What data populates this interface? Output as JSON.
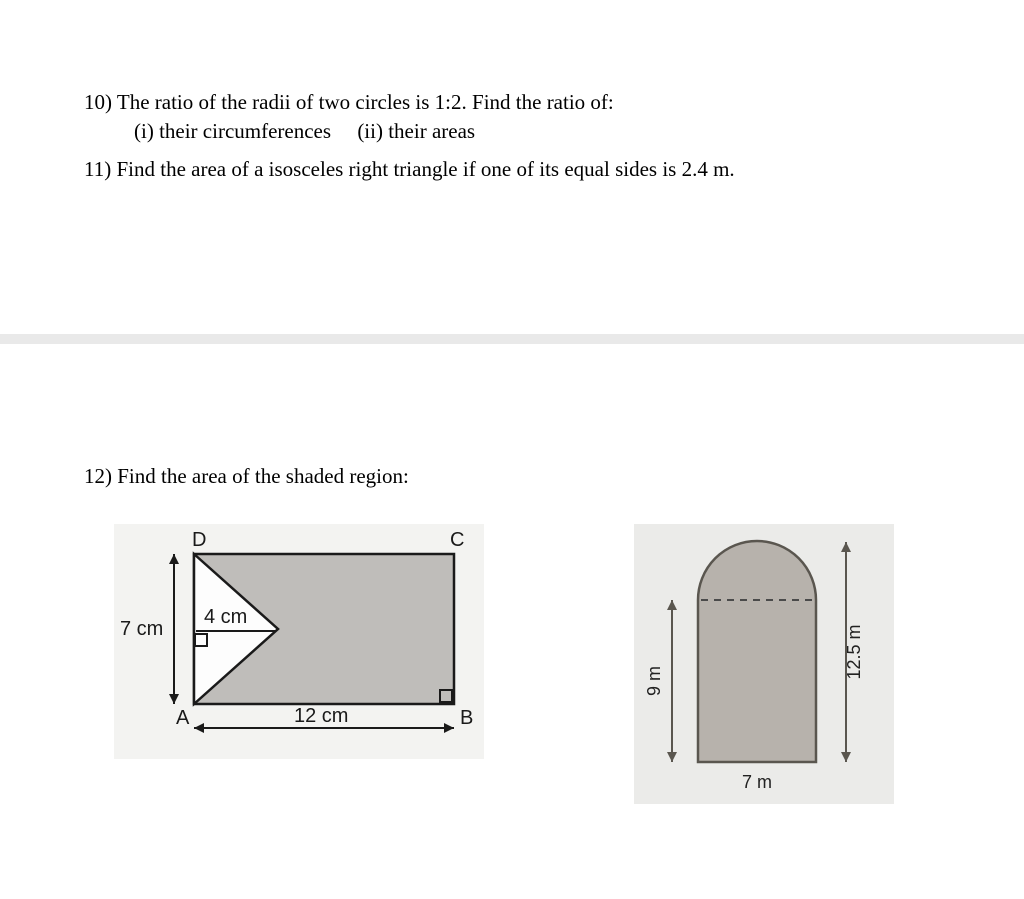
{
  "q10": {
    "number": "10)",
    "text": "The ratio of the radii of two circles is 1:2. Find the ratio of:",
    "sub_i": "(i) their circumferences",
    "sub_ii": "(ii) their areas"
  },
  "q11": {
    "number": "11)",
    "text": "Find the area of a isosceles right triangle if one of its equal sides is 2.4 m."
  },
  "q12": {
    "number": "12)",
    "text": "Find the area of the shaded region:"
  },
  "figure1": {
    "labels": {
      "D": "D",
      "C": "C",
      "A": "A",
      "B": "B"
    },
    "dims": {
      "left": "7 cm",
      "tri": "4 cm",
      "bottom": "12 cm"
    },
    "colors": {
      "fill": "#bfbdba",
      "stroke": "#1a1a1a",
      "tri_fill": "#fdfdfd",
      "bg": "#f3f3f1",
      "text": "#1a1a1a"
    }
  },
  "figure2": {
    "dims": {
      "left": "9 m",
      "right": "12.5 m",
      "bottom": "7 m"
    },
    "colors": {
      "fill": "#b7b2ac",
      "stroke": "#5a564f",
      "dash": "#4a4a4a",
      "bg": "#ebebe9",
      "text": "#222222"
    }
  }
}
